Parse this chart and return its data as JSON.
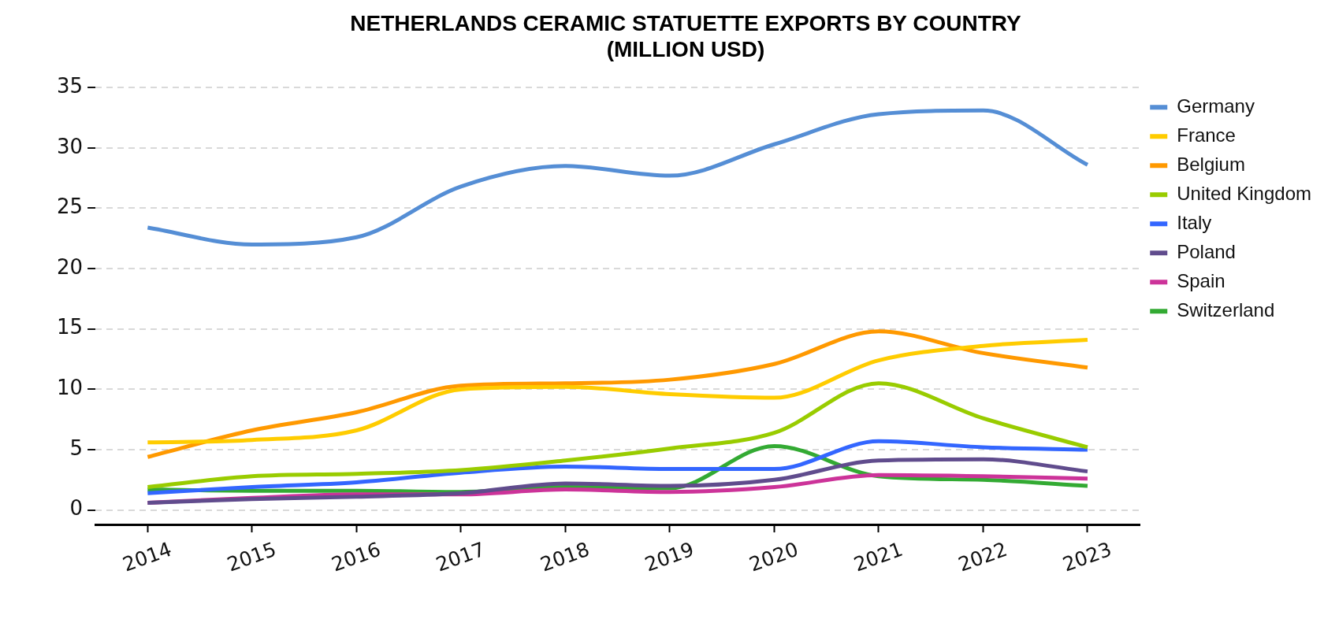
{
  "chart_data": {
    "type": "line",
    "title": "NETHERLANDS CERAMIC STATUETTE EXPORTS BY COUNTRY\n(MILLION USD)",
    "categories": [
      "2014",
      "2015",
      "2016",
      "2017",
      "2018",
      "2019",
      "2020",
      "2021",
      "2022",
      "2023"
    ],
    "series": [
      {
        "name": "Germany",
        "color": "#558ed5",
        "values": [
          23.4,
          22.0,
          22.6,
          26.8,
          28.5,
          27.7,
          30.3,
          32.8,
          33.1,
          28.6
        ]
      },
      {
        "name": "France",
        "color": "#ffcc00",
        "values": [
          5.6,
          5.8,
          6.6,
          10.0,
          10.2,
          9.6,
          9.3,
          12.4,
          13.6,
          14.1
        ]
      },
      {
        "name": "Belgium",
        "color": "#ff9900",
        "values": [
          4.4,
          6.6,
          8.1,
          10.3,
          10.5,
          10.8,
          12.1,
          14.8,
          13.0,
          11.8
        ]
      },
      {
        "name": "United Kingdom",
        "color": "#99cc00",
        "values": [
          1.9,
          2.8,
          3.0,
          3.3,
          4.1,
          5.1,
          6.4,
          10.5,
          7.6,
          5.2
        ]
      },
      {
        "name": "Italy",
        "color": "#3366ff",
        "values": [
          1.4,
          1.9,
          2.3,
          3.1,
          3.6,
          3.4,
          3.4,
          5.7,
          5.2,
          5.0
        ]
      },
      {
        "name": "Poland",
        "color": "#604c8d",
        "values": [
          0.6,
          0.9,
          1.1,
          1.4,
          2.2,
          2.0,
          2.5,
          4.1,
          4.2,
          3.2
        ]
      },
      {
        "name": "Spain",
        "color": "#cc3399",
        "values": [
          0.6,
          1.0,
          1.3,
          1.3,
          1.7,
          1.5,
          1.9,
          2.9,
          2.8,
          2.6
        ]
      },
      {
        "name": "Switzerland",
        "color": "#33aa33",
        "values": [
          1.7,
          1.6,
          1.6,
          1.5,
          1.9,
          1.8,
          5.3,
          2.8,
          2.5,
          2.0
        ]
      }
    ],
    "ylim": [
      -1.2,
      35
    ],
    "yticks": [
      0,
      5,
      10,
      15,
      20,
      25,
      30,
      35
    ],
    "grid": "y",
    "legend": "top right",
    "marker": "none"
  }
}
